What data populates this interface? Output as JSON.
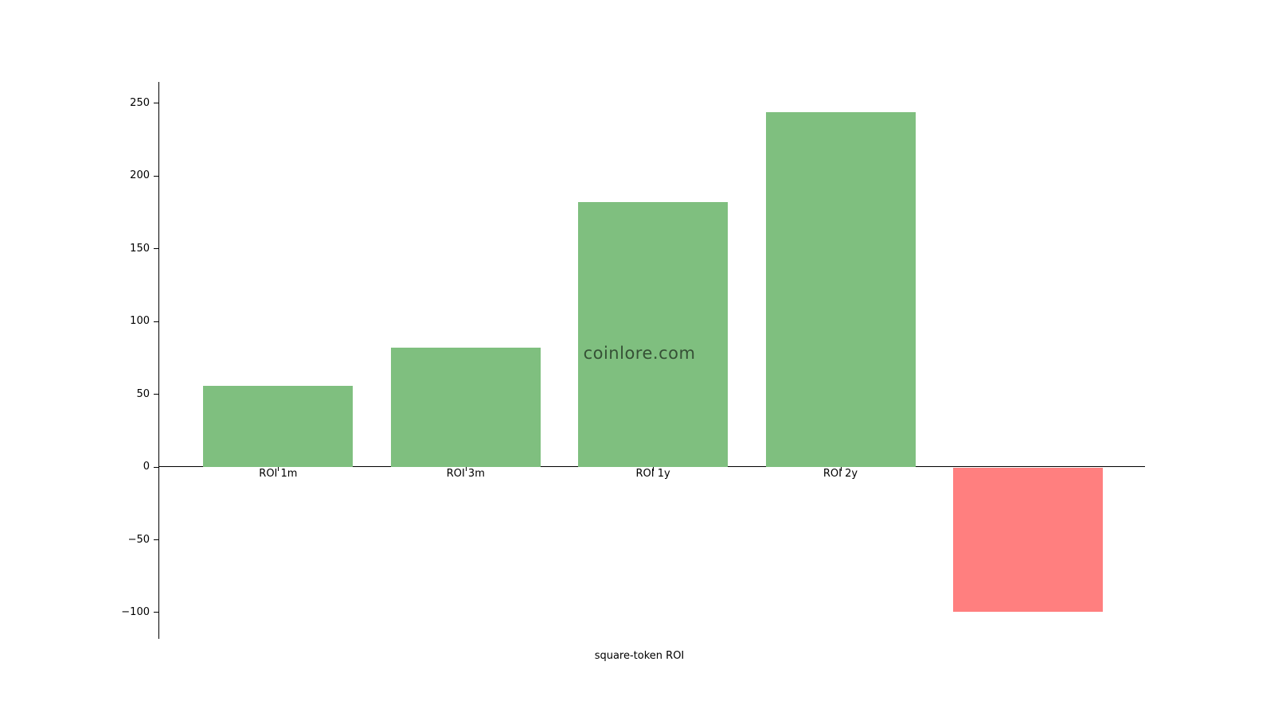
{
  "chart_data": {
    "type": "bar",
    "title": "square-token ROI",
    "watermark": "coinlore.com",
    "categories": [
      "ROI 1m",
      "ROI 3m",
      "ROI 1y",
      "ROI 2y",
      ""
    ],
    "values": [
      56,
      82,
      182,
      244,
      -99
    ],
    "bar_colors": [
      "#7fbf7f",
      "#7fbf7f",
      "#7fbf7f",
      "#7fbf7f",
      "#ff7f7f"
    ],
    "positive_color": "#7fbf7f",
    "negative_color": "#ff7f7f",
    "xlabel": "",
    "ylabel": "",
    "yticks": [
      250,
      200,
      150,
      100,
      50,
      0,
      -50,
      -100
    ],
    "ytick_labels": [
      "250",
      "200",
      "150",
      "100",
      "50",
      "0",
      "−50",
      "−100"
    ],
    "ylim": [
      -118,
      265
    ],
    "grid": false,
    "legend": false,
    "axis_color": "#000000",
    "text_color": "#000000",
    "background_color": "#ffffff"
  }
}
